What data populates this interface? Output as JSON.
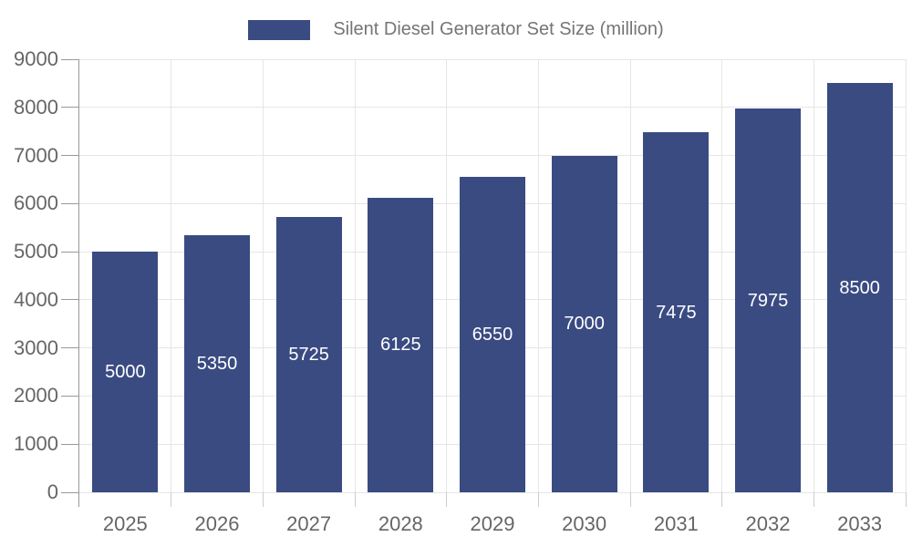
{
  "legend": {
    "label": "Silent Diesel Generator Set Size (million)"
  },
  "chart_data": {
    "type": "bar",
    "title": "Silent Diesel Generator Set Size (million)",
    "categories": [
      "2025",
      "2026",
      "2027",
      "2028",
      "2029",
      "2030",
      "2031",
      "2032",
      "2033"
    ],
    "series": [
      {
        "name": "Silent Diesel Generator Set Size (million)",
        "values": [
          5000,
          5350,
          5725,
          6125,
          6550,
          7000,
          7475,
          7975,
          8500
        ]
      }
    ],
    "value_labels": [
      "5000",
      "5350",
      "5725",
      "6125",
      "6550",
      "7000",
      "7475",
      "7975",
      "8500"
    ],
    "xlabel": "",
    "ylabel": "",
    "ylim": [
      0,
      9000
    ],
    "yticks": [
      0,
      1000,
      2000,
      3000,
      4000,
      5000,
      6000,
      7000,
      8000,
      9000
    ],
    "grid": true,
    "legend_position": "top-center",
    "value_labels_inside_bars": true,
    "colors": {
      "bar": "#3A4B82",
      "value_label": "#FFFFFF",
      "gridline": "#E6E6E6",
      "axis_line": "#999999",
      "y_tick_mark": "#999999",
      "x_tick_mark": "#CCCCCC",
      "tick_label": "#666666",
      "legend_text": "#757575"
    }
  }
}
